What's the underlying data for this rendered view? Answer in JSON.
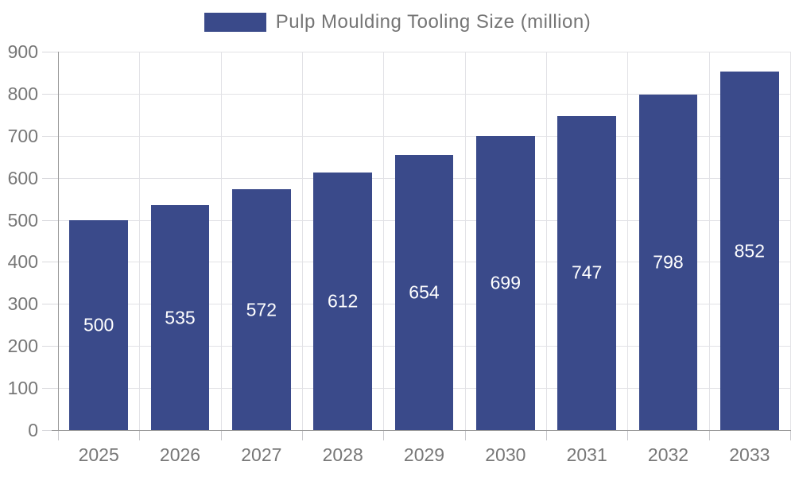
{
  "legend": {
    "label": "Pulp Moulding Tooling Size (million)",
    "swatch_color": "#3a4a8a"
  },
  "chart_data": {
    "type": "bar",
    "title": "Pulp Moulding Tooling Size (million)",
    "categories": [
      "2025",
      "2026",
      "2027",
      "2028",
      "2029",
      "2030",
      "2031",
      "2032",
      "2033"
    ],
    "values": [
      500,
      535,
      572,
      612,
      654,
      699,
      747,
      798,
      852
    ],
    "xlabel": "",
    "ylabel": "",
    "ylim": [
      0,
      900
    ],
    "ytick_interval": 100,
    "yticks": [
      0,
      100,
      200,
      300,
      400,
      500,
      600,
      700,
      800,
      900
    ],
    "grid": true,
    "legend_position": "top-center",
    "bar_color": "#3a4a8a",
    "value_label_color": "#ffffff",
    "axis_text_color": "#777777",
    "grid_color": "#e2e2e6",
    "axis_line_color": "#9b9b9b"
  }
}
